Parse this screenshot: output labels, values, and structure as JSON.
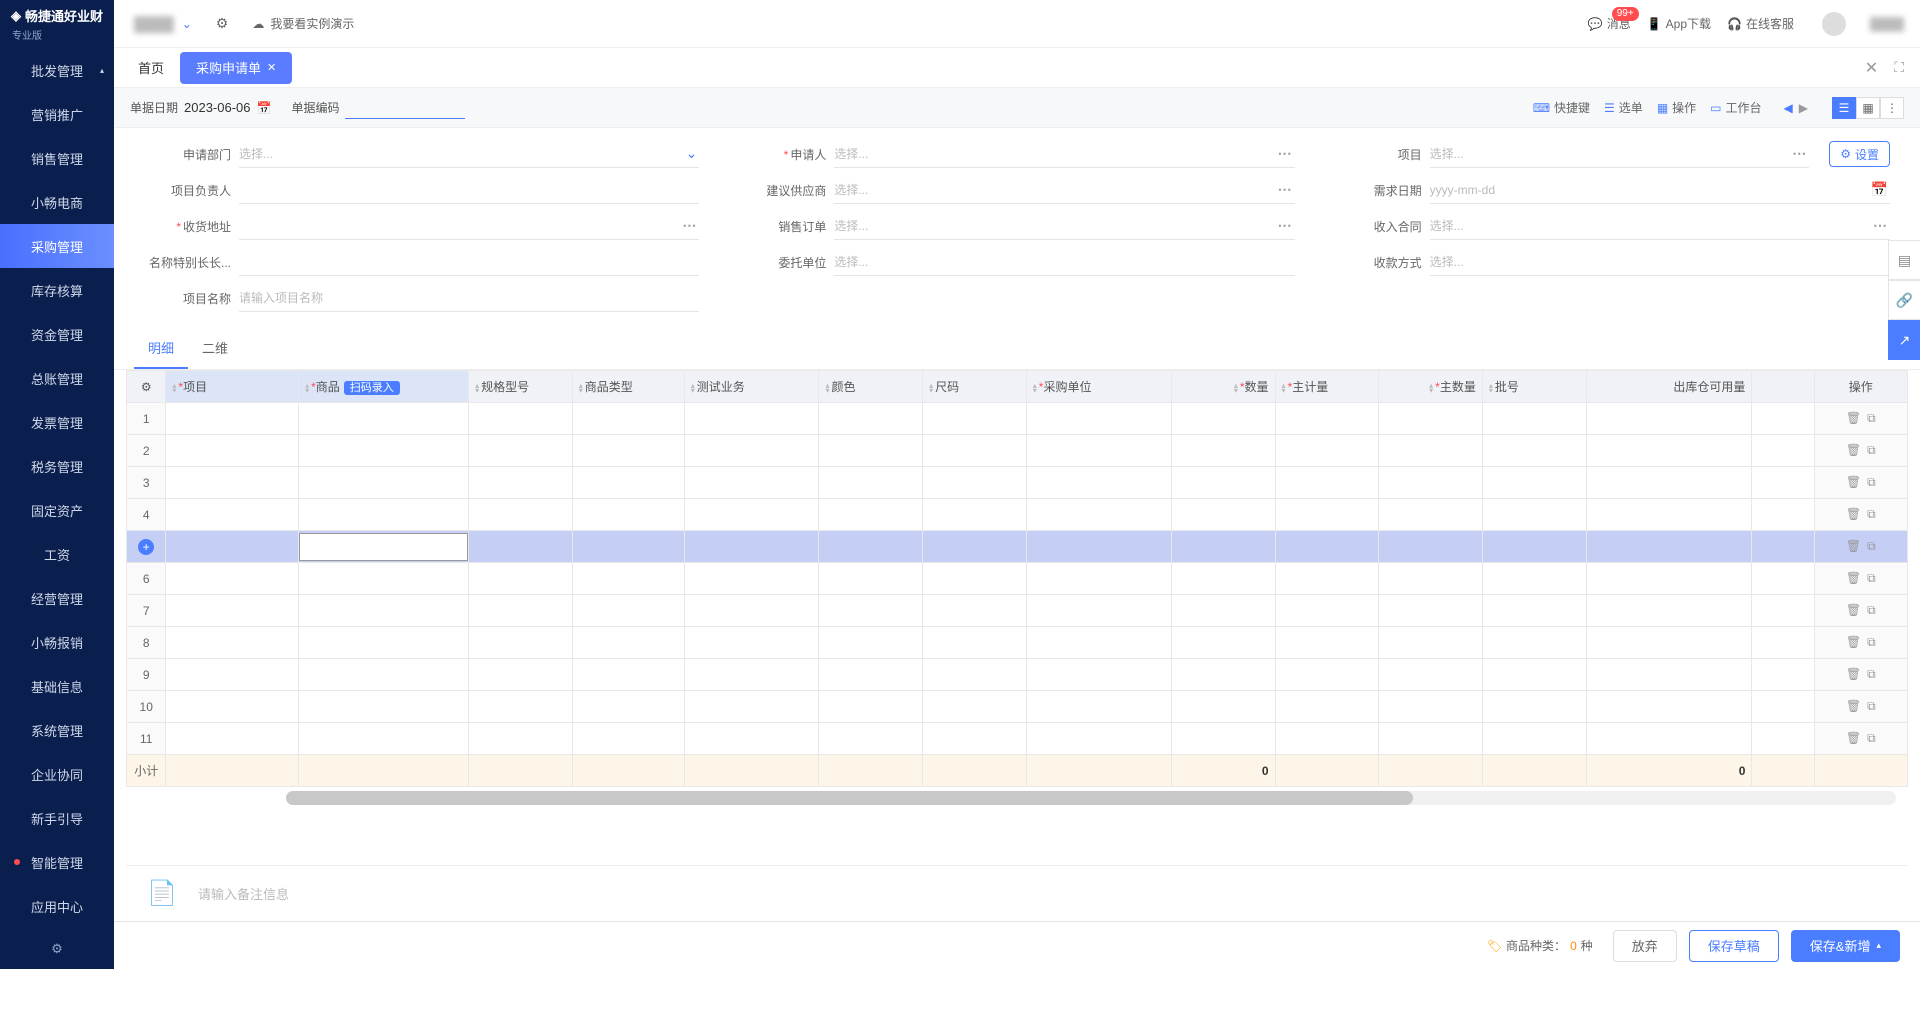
{
  "product": {
    "name": "畅捷通好业财",
    "edition": "专业版"
  },
  "header": {
    "company_blur": "████",
    "demo_link": "我要看实例演示",
    "messages_label": "消息",
    "messages_badge": "99+",
    "app_download": "App下载",
    "online_service": "在线客服",
    "user_blur": "████"
  },
  "sidebar": {
    "items": [
      {
        "label": "批发管理",
        "has_arrow": true
      },
      {
        "label": "营销推广"
      },
      {
        "label": "销售管理"
      },
      {
        "label": "小畅电商"
      },
      {
        "label": "采购管理",
        "active": true
      },
      {
        "label": "库存核算"
      },
      {
        "label": "资金管理"
      },
      {
        "label": "总账管理"
      },
      {
        "label": "发票管理"
      },
      {
        "label": "税务管理"
      },
      {
        "label": "固定资产"
      },
      {
        "label": "工资"
      },
      {
        "label": "经营管理"
      },
      {
        "label": "小畅报销"
      },
      {
        "label": "基础信息"
      },
      {
        "label": "系统管理"
      },
      {
        "label": "企业协同"
      },
      {
        "label": "新手引导"
      },
      {
        "label": "智能管理",
        "has_dot": true
      },
      {
        "label": "应用中心"
      }
    ]
  },
  "tabs": {
    "home": "首页",
    "active": "采购申请单"
  },
  "toolbar": {
    "date_label": "单据日期",
    "date_value": "2023-06-06",
    "code_label": "单据编码",
    "shortcuts": "快捷键",
    "select_order": "选单",
    "operation": "操作",
    "workbench": "工作台"
  },
  "form": {
    "apply_dept": "申请部门",
    "applicant": "申请人",
    "project": "项目",
    "settings_btn": "设置",
    "project_owner": "项目负责人",
    "suggest_supplier": "建议供应商",
    "demand_date": "需求日期",
    "demand_date_ph": "yyyy-mm-dd",
    "receive_addr": "收货地址",
    "sales_order": "销售订单",
    "income_contract": "收入合同",
    "long_name": "名称特别长长...",
    "entrust_unit": "委托单位",
    "payment_method": "收款方式",
    "project_name_label": "项目名称",
    "project_name_ph": "请输入项目名称",
    "select_ph": "选择..."
  },
  "sub_tabs": {
    "detail": "明细",
    "two_d": "二维"
  },
  "table": {
    "columns": {
      "project": "项目",
      "product": "商品",
      "scan_badge": "扫码录入",
      "spec": "规格型号",
      "category": "商品类型",
      "test_biz": "测试业务",
      "color": "颜色",
      "size": "尺码",
      "purchase_unit": "采购单位",
      "qty": "数量",
      "main_measure": "主计量",
      "main_qty": "主数量",
      "batch": "批号",
      "out_stock_avail": "出库仓可用量",
      "actions": "操作"
    },
    "row_count": 11,
    "active_row": 5,
    "subtotal_label": "小计",
    "subtotal_qty": "0",
    "subtotal_out": "0"
  },
  "remarks": {
    "placeholder": "请输入备注信息"
  },
  "footer": {
    "summary_label": "商品种类：",
    "summary_count": "0",
    "summary_unit": "种",
    "discard": "放弃",
    "save_draft": "保存草稿",
    "save_new": "保存&新增"
  },
  "colors": {
    "primary": "#4a7dff",
    "sidebar_bg": "#0a1f4d",
    "active_row": "#c5cef5",
    "subtotal_bg": "#fdf6e8",
    "header_bg": "#f0f2f7",
    "blue_head_bg": "#dce4f7"
  }
}
